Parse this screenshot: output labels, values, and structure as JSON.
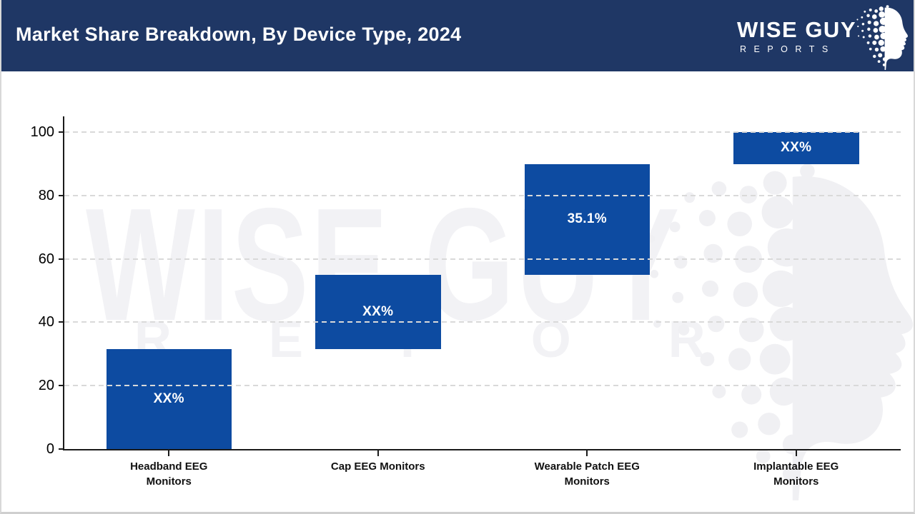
{
  "header": {
    "title": "Market Share Breakdown, By Device Type, 2024",
    "brand": {
      "line1": "WISE GUY",
      "line2": "REPORTS"
    },
    "bg_color": "#1f3765"
  },
  "watermark": {
    "line1": "WISE GUY",
    "line2": "R E P O R T S"
  },
  "chart_data": {
    "type": "bar",
    "subtype": "waterfall-floating-bars",
    "title": "Market Share Breakdown, By Device Type, 2024",
    "categories": [
      "Headband EEG\nMonitors",
      "Cap EEG Monitors",
      "Wearable Patch EEG\nMonitors",
      "Implantable EEG\nMonitors"
    ],
    "segments": [
      {
        "start": 0,
        "end": 31.5,
        "size": 31.5,
        "label": "XX%"
      },
      {
        "start": 31.5,
        "end": 54.9,
        "size": 23.4,
        "label": "XX%"
      },
      {
        "start": 54.9,
        "end": 90,
        "size": 35.1,
        "label": "35.1%"
      },
      {
        "start": 90,
        "end": 100,
        "size": 10,
        "label": "XX%"
      }
    ],
    "xlabel": "",
    "ylabel": "",
    "ylim": [
      0,
      105
    ],
    "yticks": [
      "0",
      "20",
      "40",
      "60",
      "80",
      "100"
    ],
    "grid": "horizontal dashed",
    "legend": "none",
    "bar_color": "#0d4ba1",
    "bar_label_color": "#ffffff",
    "gridline_color": "#d9d9d9",
    "axis_color": "#1a1a1a"
  }
}
